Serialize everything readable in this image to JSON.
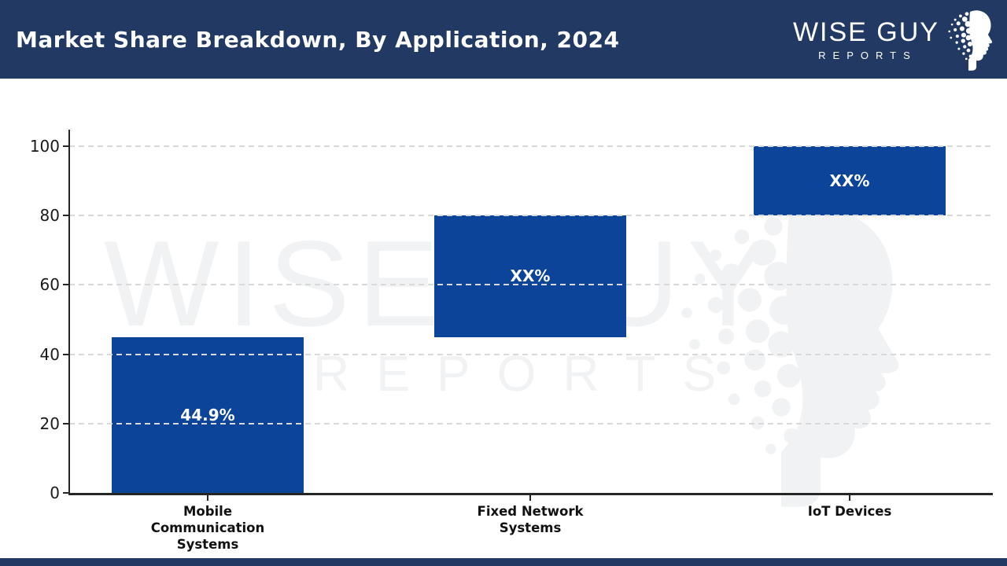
{
  "header": {
    "title": "Market Share Breakdown, By Application, 2024",
    "logo": {
      "wordmark": "WISE GUY",
      "subtext": "REPORTS"
    }
  },
  "watermark": {
    "wordmark": "WISE GUY",
    "subtext": "REPORTS"
  },
  "chart_data": {
    "type": "bar",
    "variant": "waterfall",
    "title": "Market Share Breakdown, By Application, 2024",
    "categories": [
      "Mobile\nCommunication\nSystems",
      "Fixed Network\nSystems",
      "IoT Devices"
    ],
    "segments": [
      {
        "category": "Mobile Communication Systems",
        "label": "44.9%",
        "start": 0,
        "end": 44.9,
        "value": 44.9
      },
      {
        "category": "Fixed Network Systems",
        "label": "XX%",
        "start": 44.9,
        "end": 80.1,
        "value": 35.2
      },
      {
        "category": "IoT Devices",
        "label": "XX%",
        "start": 80.1,
        "end": 100,
        "value": 19.9
      }
    ],
    "y_ticks": [
      0,
      20,
      40,
      60,
      80,
      100
    ],
    "ylim": [
      0,
      105
    ],
    "xlabel": "",
    "ylabel": "",
    "grid": {
      "axis": "y",
      "style": "dashed",
      "color": "#d9d9d9"
    },
    "legend": "none"
  },
  "colors": {
    "header_bg": "#223a63",
    "footer_bg": "#223a63",
    "bar": "#0b4499",
    "bar_label": "#ffffff",
    "axis": "#262626",
    "grid": "#d9d9d9",
    "watermark": "#f1f2f4",
    "title_text": "#ffffff"
  }
}
